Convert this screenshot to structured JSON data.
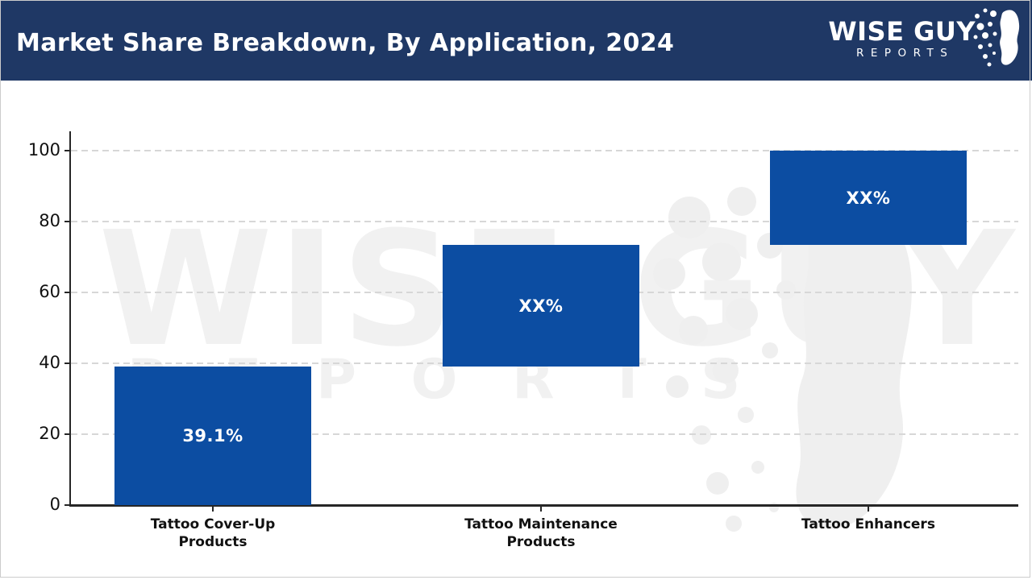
{
  "header": {
    "title": "Market Share Breakdown, By Application, 2024",
    "logo": {
      "line1": "WISE GUY",
      "line2": "REPORTS"
    }
  },
  "watermark": {
    "line1": "WISE GUY",
    "line2": "R E P O R T S"
  },
  "chart_data": {
    "type": "bar",
    "subtype": "waterfall-floating-bars",
    "title": "Market Share Breakdown, By Application, 2024",
    "categories": [
      "Tattoo Cover-Up\nProducts",
      "Tattoo Maintenance\nProducts",
      "Tattoo Enhancers"
    ],
    "series": [
      {
        "name": "Market Share %",
        "segments": [
          {
            "category": "Tattoo Cover-Up Products",
            "start": 0,
            "end": 39.1,
            "label": "39.1%"
          },
          {
            "category": "Tattoo Maintenance Products",
            "start": 39.1,
            "end": 73.3,
            "label": "XX%"
          },
          {
            "category": "Tattoo Enhancers",
            "start": 73.3,
            "end": 100,
            "label": "XX%"
          }
        ]
      }
    ],
    "ylim": [
      0,
      100
    ],
    "yticks": [
      0,
      20,
      40,
      60,
      80,
      100
    ],
    "xlabel": "",
    "ylabel": "",
    "grid": "horizontal-dashed",
    "legend_position": "none"
  },
  "colors": {
    "header_bg": "#1f3865",
    "title_text": "#ffffff",
    "bar": "#0c4da2",
    "bar_label": "#ffffff",
    "grid": "#d7d7d7",
    "axis": "#262626",
    "tick_text": "#111111",
    "category_text": "#111111",
    "watermark": "#f1f1f1",
    "frame_border": "#cccccc"
  }
}
